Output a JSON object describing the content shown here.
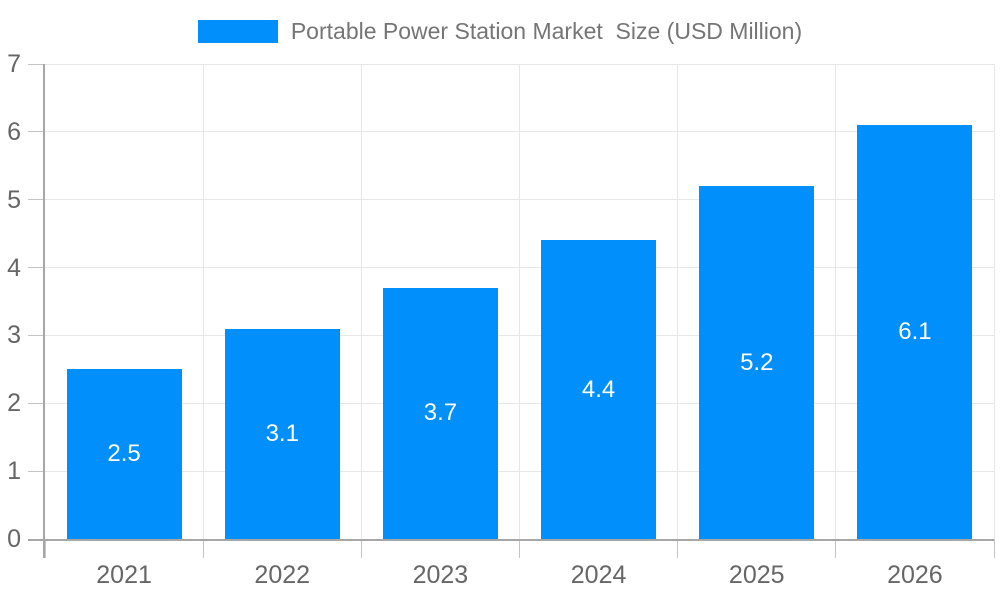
{
  "chart_data": {
    "type": "bar",
    "legend_label": "Portable Power Station Market  Size (USD Million)",
    "categories": [
      "2021",
      "2022",
      "2023",
      "2024",
      "2025",
      "2026"
    ],
    "values": [
      2.5,
      3.1,
      3.7,
      4.4,
      5.2,
      6.1
    ],
    "data_labels": [
      "2.5",
      "3.1",
      "3.7",
      "4.4",
      "5.2",
      "6.1"
    ],
    "ylim": [
      0,
      7
    ],
    "yticks": [
      0,
      1,
      2,
      3,
      4,
      5,
      6,
      7
    ],
    "legend_position": "top",
    "grid": true,
    "data_label_position": "inside-center",
    "colors": {
      "bar": "#008FFB",
      "grid": "#e7e7e7",
      "axis": "#a6a6a6",
      "tick": "#c4c4c4",
      "axis_label": "#666666",
      "legend_text": "#757575",
      "bar_label": "#ffffff",
      "background": "#ffffff"
    }
  }
}
